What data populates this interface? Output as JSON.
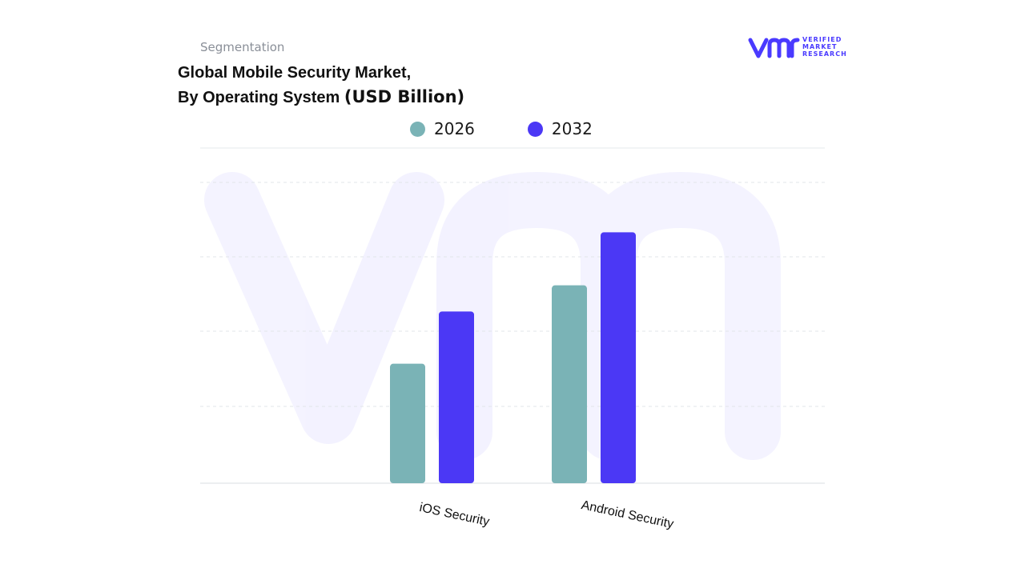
{
  "header": {
    "segment_label": "Segmentation",
    "title_line1": "Global Mobile Security Market,",
    "title_line2": "By Operating System ",
    "title_unit": "(USD Billion)"
  },
  "logo": {
    "line1": "VERIFIED",
    "line2": "MARKET",
    "line3": "RESEARCH",
    "color": "#4a3aff"
  },
  "chart_data": {
    "type": "bar",
    "title": "Global Mobile Security Market, By Operating System (USD Billion)",
    "categories": [
      "iOS Security",
      "Android Security"
    ],
    "series": [
      {
        "name": "2026",
        "values": [
          16,
          26.5
        ],
        "color": "#7ab3b6"
      },
      {
        "name": "2032",
        "values": [
          23,
          33.6
        ],
        "color": "#4b38f5"
      }
    ],
    "xlabel": "",
    "ylabel": "",
    "ylim": [
      0,
      45
    ],
    "grid": true,
    "legend": "top-center",
    "value_labels_shown": false
  }
}
